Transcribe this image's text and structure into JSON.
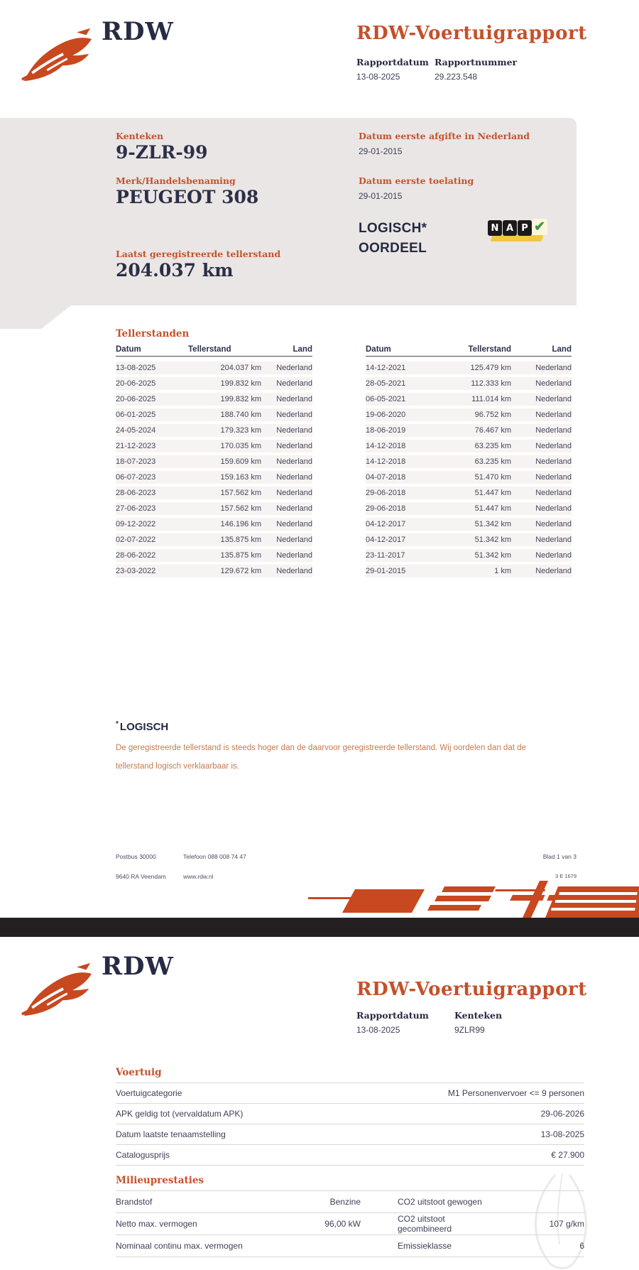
{
  "colors": {
    "accent_orange": "#c4502b",
    "body_orange": "#c57b50",
    "navy": "#272a41",
    "panel_grey": "#eae6e5",
    "page_break": "#241f21",
    "flame_orange": "#c8481f",
    "nap_yellow": "#f1c743",
    "nap_green": "#3c9a43"
  },
  "page1": {
    "brand": "RDW",
    "title": "RDW-Voertuigrapport",
    "meta": {
      "rapportdatum_label": "Rapportdatum",
      "rapportdatum": "13-08-2025",
      "rapportnummer_label": "Rapportnummer",
      "rapportnummer": "29.223.548"
    },
    "summary": {
      "kenteken_label": "Kenteken",
      "kenteken": "9-ZLR-99",
      "merk_label": "Merk/Handelsbenaming",
      "merk": "PEUGEOT 308",
      "tellerstand_label": "Laatst geregistreerde tellerstand",
      "tellerstand": "204.037 km",
      "afgifte_label": "Datum eerste afgifte in Nederland",
      "afgifte": "29-01-2015",
      "toelating_label": "Datum eerste toelating",
      "toelating": "29-01-2015",
      "oordeel_line1": "LOGISCH*",
      "oordeel_line2": "OORDEEL",
      "nap_letters": [
        "N",
        "A",
        "P"
      ],
      "nap_check": "✔"
    },
    "tellerstanden": {
      "heading": "Tellerstanden",
      "columns": {
        "datum": "Datum",
        "tellerstand": "Tellerstand",
        "land": "Land"
      },
      "left": [
        {
          "datum": "13-08-2025",
          "tellerstand": "204.037 km",
          "land": "Nederland"
        },
        {
          "datum": "20-06-2025",
          "tellerstand": "199.832 km",
          "land": "Nederland"
        },
        {
          "datum": "20-06-2025",
          "tellerstand": "199.832 km",
          "land": "Nederland"
        },
        {
          "datum": "06-01-2025",
          "tellerstand": "188.740 km",
          "land": "Nederland"
        },
        {
          "datum": "24-05-2024",
          "tellerstand": "179.323 km",
          "land": "Nederland"
        },
        {
          "datum": "21-12-2023",
          "tellerstand": "170.035 km",
          "land": "Nederland"
        },
        {
          "datum": "18-07-2023",
          "tellerstand": "159.609 km",
          "land": "Nederland"
        },
        {
          "datum": "06-07-2023",
          "tellerstand": "159.163 km",
          "land": "Nederland"
        },
        {
          "datum": "28-06-2023",
          "tellerstand": "157.562 km",
          "land": "Nederland"
        },
        {
          "datum": "27-06-2023",
          "tellerstand": "157.562 km",
          "land": "Nederland"
        },
        {
          "datum": "09-12-2022",
          "tellerstand": "146.196 km",
          "land": "Nederland"
        },
        {
          "datum": "02-07-2022",
          "tellerstand": "135.875 km",
          "land": "Nederland"
        },
        {
          "datum": "28-06-2022",
          "tellerstand": "135.875 km",
          "land": "Nederland"
        },
        {
          "datum": "23-03-2022",
          "tellerstand": "129.672 km",
          "land": "Nederland"
        }
      ],
      "right": [
        {
          "datum": "14-12-2021",
          "tellerstand": "125.479 km",
          "land": "Nederland"
        },
        {
          "datum": "28-05-2021",
          "tellerstand": "112.333 km",
          "land": "Nederland"
        },
        {
          "datum": "06-05-2021",
          "tellerstand": "111.014 km",
          "land": "Nederland"
        },
        {
          "datum": "19-06-2020",
          "tellerstand": "96.752 km",
          "land": "Nederland"
        },
        {
          "datum": "18-06-2019",
          "tellerstand": "76.467 km",
          "land": "Nederland"
        },
        {
          "datum": "14-12-2018",
          "tellerstand": "63.235 km",
          "land": "Nederland"
        },
        {
          "datum": "14-12-2018",
          "tellerstand": "63.235 km",
          "land": "Nederland"
        },
        {
          "datum": "04-07-2018",
          "tellerstand": "51.470 km",
          "land": "Nederland"
        },
        {
          "datum": "29-06-2018",
          "tellerstand": "51.447 km",
          "land": "Nederland"
        },
        {
          "datum": "29-06-2018",
          "tellerstand": "51.447 km",
          "land": "Nederland"
        },
        {
          "datum": "04-12-2017",
          "tellerstand": "51.342 km",
          "land": "Nederland"
        },
        {
          "datum": "04-12-2017",
          "tellerstand": "51.342 km",
          "land": "Nederland"
        },
        {
          "datum": "23-11-2017",
          "tellerstand": "51.342 km",
          "land": "Nederland"
        },
        {
          "datum": "29-01-2015",
          "tellerstand": "1 km",
          "land": "Nederland"
        }
      ]
    },
    "logisch": {
      "asterisk": "*",
      "heading": "LOGISCH",
      "body": "De geregistreerde tellerstand is steeds hoger dan de daarvoor geregistreerde tellerstand. Wij oordelen dan dat de tellerstand logisch verklaarbaar is."
    },
    "footer": {
      "address1": "Postbus 30000",
      "address2": "9640 RA Veendam",
      "phone": "Telefoon 088 008 74 47",
      "website": "www.rdw.nl",
      "page": "Blad 1 van 3",
      "code": "3 E 1679"
    }
  },
  "page2": {
    "brand": "RDW",
    "title": "RDW-Voertuigrapport",
    "meta": {
      "rapportdatum_label": "Rapportdatum",
      "rapportdatum": "13-08-2025",
      "kenteken_label": "Kenteken",
      "kenteken": "9ZLR99"
    },
    "voertuig": {
      "heading": "Voertuig",
      "rows": [
        {
          "label": "Voertuigcategorie",
          "value": "M1 Personenvervoer <= 9 personen"
        },
        {
          "label": "APK geldig tot (vervaldatum APK)",
          "value": "29-06-2026"
        },
        {
          "label": "Datum laatste tenaamstelling",
          "value": "13-08-2025"
        },
        {
          "label": "Catalogusprijs",
          "value": "€ 27.900"
        }
      ]
    },
    "milieu": {
      "heading": "Milieuprestaties",
      "rows": [
        {
          "label1": "Brandstof",
          "value1": "Benzine",
          "label2": "CO2 uitstoot gewogen",
          "value2": ""
        },
        {
          "label1": "Netto max. vermogen",
          "value1": "96,00 kW",
          "label2": "CO2 uitstoot gecombineerd",
          "value2": "107 g/km"
        },
        {
          "label1": "Nominaal continu max. vermogen",
          "value1": "",
          "label2": "Emissieklasse",
          "value2": "6"
        }
      ]
    }
  }
}
